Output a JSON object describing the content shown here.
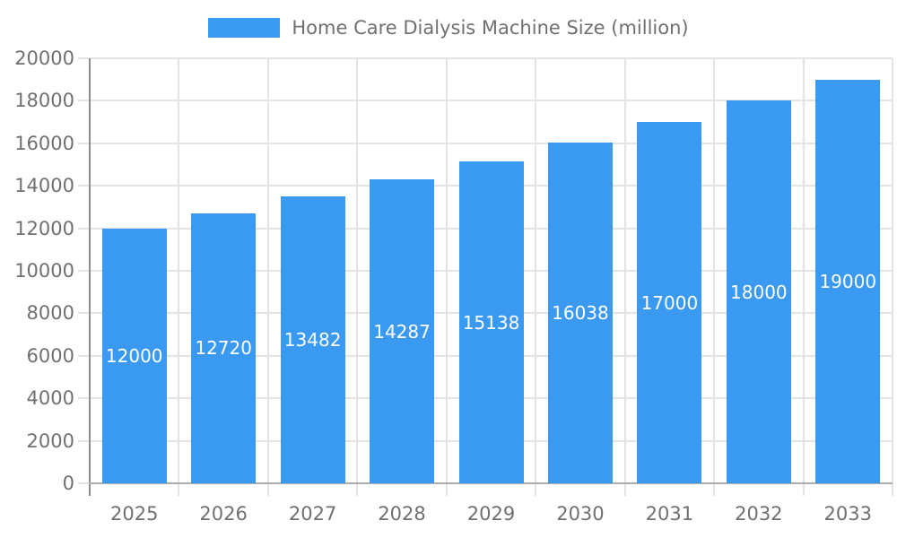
{
  "chart_data": {
    "type": "bar",
    "title": "Home Care Dialysis Machine Size (million)",
    "legend_position": "top",
    "categories": [
      "2025",
      "2026",
      "2027",
      "2028",
      "2029",
      "2030",
      "2031",
      "2032",
      "2033"
    ],
    "values": [
      12000,
      12720,
      13482,
      14287,
      15138,
      16038,
      17000,
      18000,
      19000
    ],
    "xlabel": "",
    "ylabel": "",
    "ylim": [
      0,
      20000
    ],
    "ytick_step": 2000,
    "ytick_labels": [
      "0",
      "2000",
      "4000",
      "6000",
      "8000",
      "10000",
      "12000",
      "14000",
      "16000",
      "18000",
      "20000"
    ],
    "grid": true,
    "bar_labels_inside": true,
    "colors": {
      "bar": "#3A99F1",
      "bar_label": "#FFFFFF",
      "axis_text": "#707070",
      "gridline": "#E4E4E4",
      "y_axis_line": "#8C8C8C",
      "x_axis_line": "#ADADAD",
      "background": "#FFFFFF"
    }
  }
}
